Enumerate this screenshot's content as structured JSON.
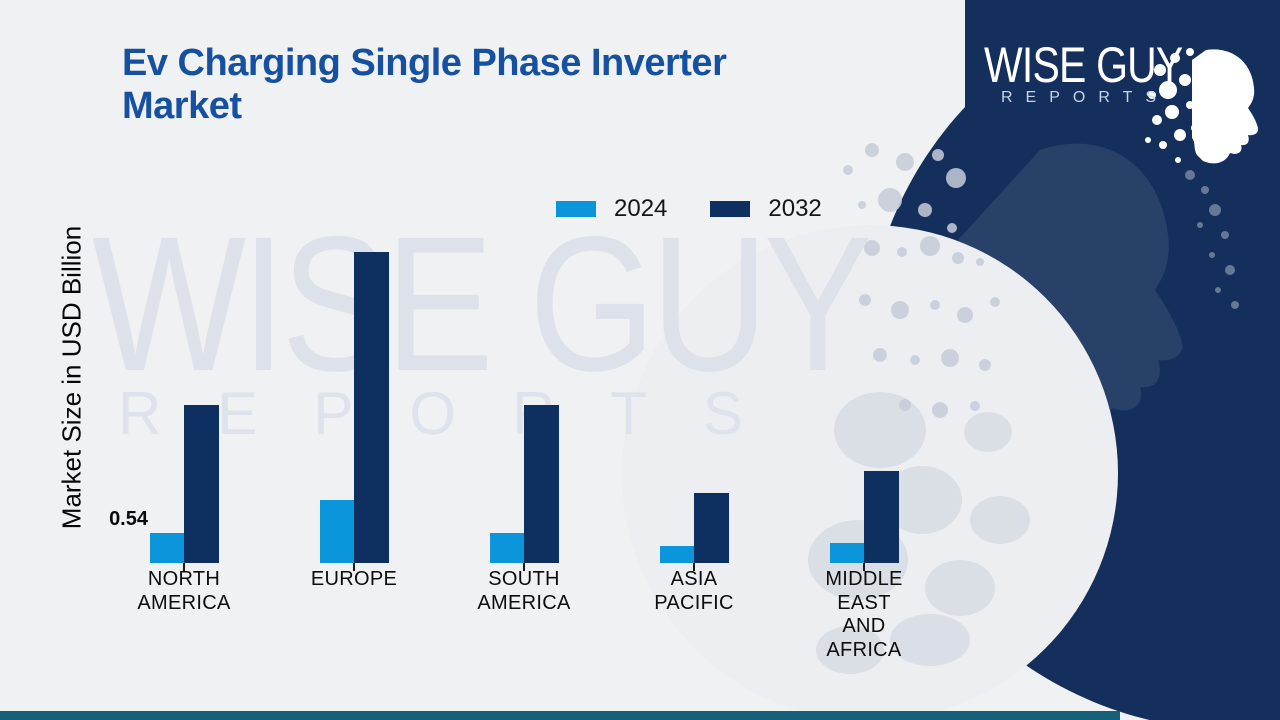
{
  "title_lines": [
    "Ev Charging Single Phase Inverter",
    "Market"
  ],
  "watermark": {
    "line1": "WISE GUY",
    "line2": "REPORTS"
  },
  "logo": {
    "brand_top": "WISE GUY",
    "brand_bottom": "REPORTS",
    "face_icon": "face-profile-dots-icon"
  },
  "colors": {
    "background": "#f0f1f3",
    "title": "#1551a0",
    "navy_panel": "#142f5b",
    "navy_face": "#274169",
    "light_circle": "#eceef1",
    "teal_strip": "#176079",
    "bar_2024": "#0b95da",
    "bar_2032": "#0d3060",
    "watermark": "#dde1e9"
  },
  "chart_data": {
    "type": "bar",
    "title": "Ev Charging Single Phase Inverter Market",
    "ylabel": "Market Size in USD Billion",
    "xlabel": "",
    "categories": [
      "NORTH AMERICA",
      "EUROPE",
      "SOUTH AMERICA",
      "ASIA PACIFIC",
      "MIDDLE EAST AND AFRICA"
    ],
    "series": [
      {
        "name": "2024",
        "color": "#0b95da",
        "values": [
          0.54,
          1.13,
          0.54,
          0.31,
          0.36
        ]
      },
      {
        "name": "2032",
        "color": "#0d3060",
        "values": [
          2.84,
          5.6,
          2.84,
          1.26,
          1.66
        ]
      }
    ],
    "bar_labels": [
      [
        "0.54",
        "",
        "",
        "",
        ""
      ],
      [
        "",
        "",
        "",
        "",
        ""
      ]
    ],
    "ylim": [
      0,
      6.2
    ],
    "grid": false,
    "legend_position": "top-center",
    "units": "USD Billion"
  }
}
